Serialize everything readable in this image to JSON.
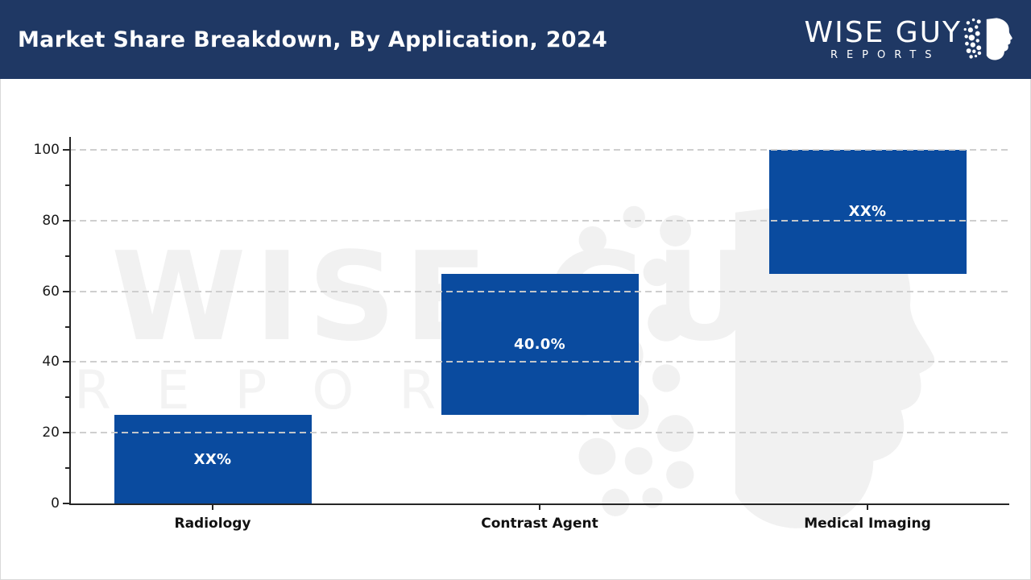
{
  "header": {
    "title": "Market Share Breakdown, By Application, 2024",
    "logo": {
      "wordmark": "WISE GUY",
      "subtext": "REPORTS"
    }
  },
  "watermark": {
    "wordmark": "WISE GUY",
    "subtext": "REPORTS"
  },
  "chart_data": {
    "type": "bar",
    "subtype": "floating_range_bars",
    "title": "Market Share Breakdown, By Application, 2024",
    "categories": [
      "Radiology",
      "Contrast Agent",
      "Medical Imaging"
    ],
    "series": [
      {
        "category": "Radiology",
        "range_start": 0,
        "range_end": 25,
        "bar_label": "XX%"
      },
      {
        "category": "Contrast Agent",
        "range_start": 25,
        "range_end": 65,
        "bar_label": "40.0%"
      },
      {
        "category": "Medical Imaging",
        "range_start": 65,
        "range_end": 100,
        "bar_label": "XX%"
      }
    ],
    "xlabel": "",
    "ylabel": "",
    "ylim": [
      0,
      100
    ],
    "yticks": [
      0,
      20,
      40,
      60,
      80,
      100
    ],
    "grid": {
      "axis": "y",
      "style": "dashed",
      "enabled": true
    },
    "legend": "none",
    "colors": {
      "bar": "#0a4b9f",
      "grid": "#cccccc",
      "axis": "#262626",
      "tick_label": "#1a1a1a",
      "bar_label_text": "#ffffff",
      "header_bg": "#1f3864",
      "watermark": "#f1f1f1"
    }
  }
}
